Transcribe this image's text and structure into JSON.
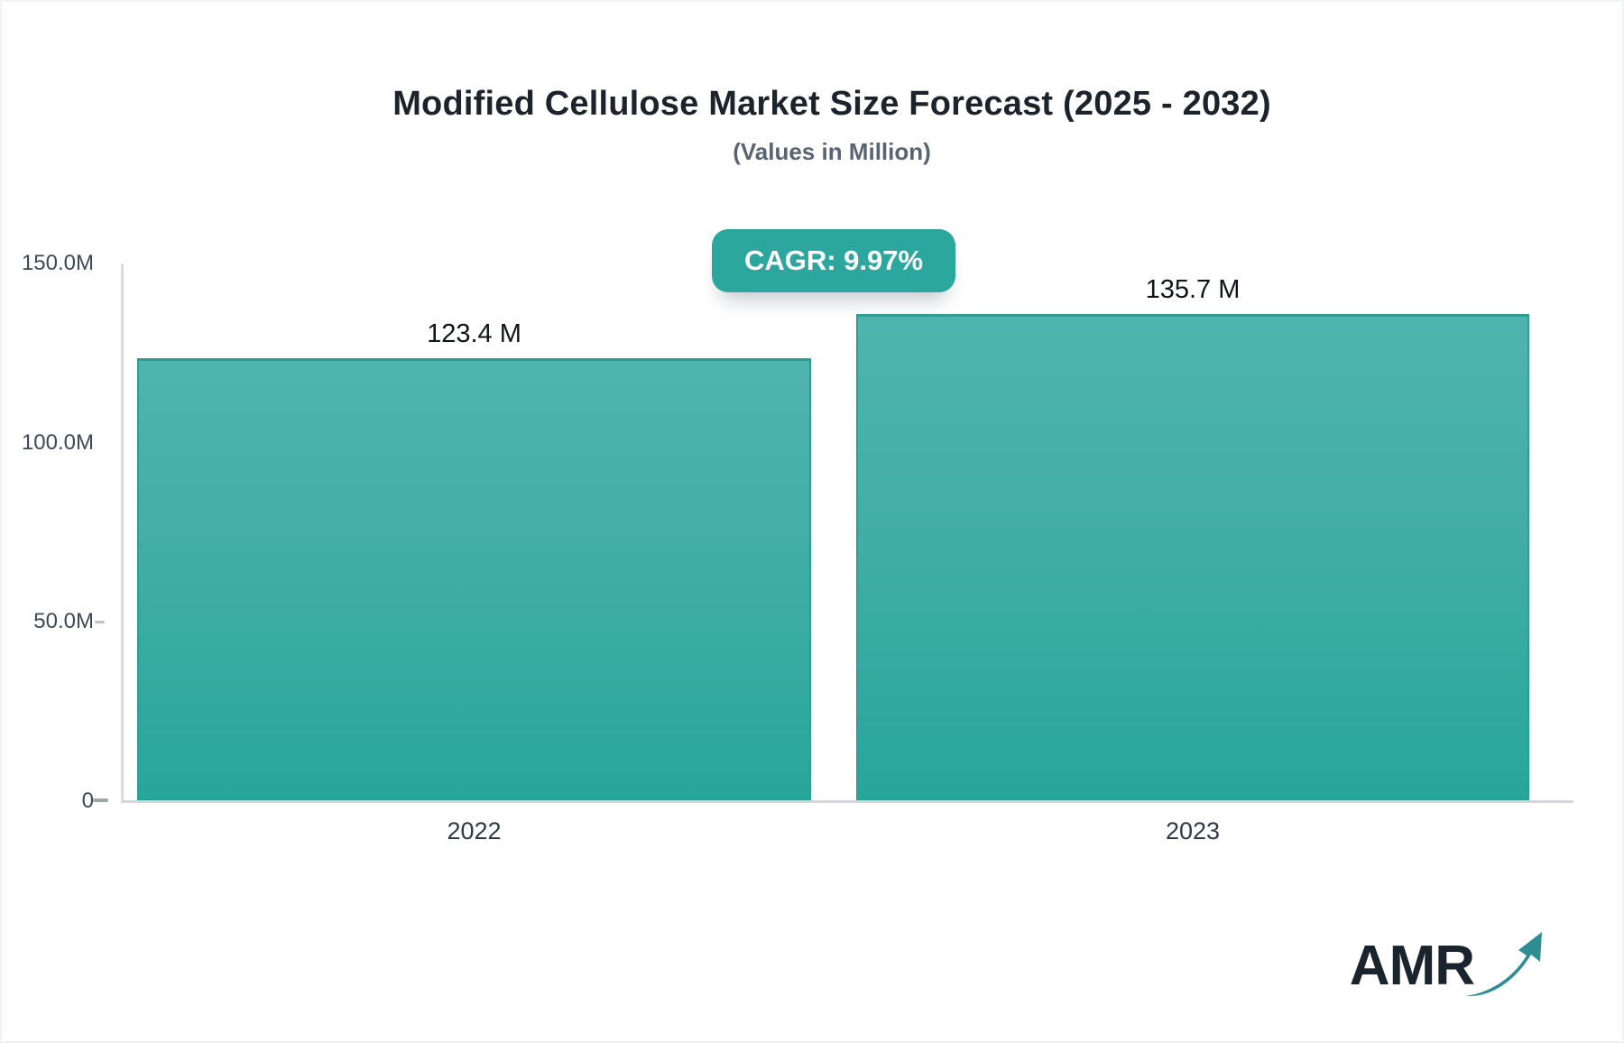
{
  "chart_data": {
    "type": "bar",
    "title": "Modified Cellulose Market Size Forecast (2025 - 2032)",
    "subtitle": "(Values in Million)",
    "cagr_badge": "CAGR: 9.97%",
    "unit": "Million",
    "categories": [
      "2022",
      "2023"
    ],
    "values": [
      123.4,
      135.7
    ],
    "value_labels": [
      "123.4 M",
      "135.7 M"
    ],
    "ylim": [
      0,
      150
    ],
    "y_ticks": [
      {
        "label": "150.0M",
        "value": 150
      },
      {
        "label": "100.0M",
        "value": 100
      },
      {
        "label": "50.0M",
        "value": 50
      },
      {
        "label": "0",
        "value": 0
      }
    ],
    "grid": false,
    "legend": false,
    "xlabel": "",
    "ylabel": ""
  },
  "colors": {
    "bar_gradient_top": "#4FB4AD",
    "bar_gradient_bottom": "#28A69A",
    "bar_border": "#2F9D93",
    "badge_background": "#2BA79D",
    "badge_text": "#FFFFFF",
    "title_text": "#1C232A",
    "subtitle_text": "#5A6470",
    "axis_line": "#D6D8DE",
    "tick_label_text": "#3E4956",
    "logo_text": "#19242C",
    "logo_arrow": "#2E8E93"
  },
  "logo": {
    "text": "AMR"
  }
}
